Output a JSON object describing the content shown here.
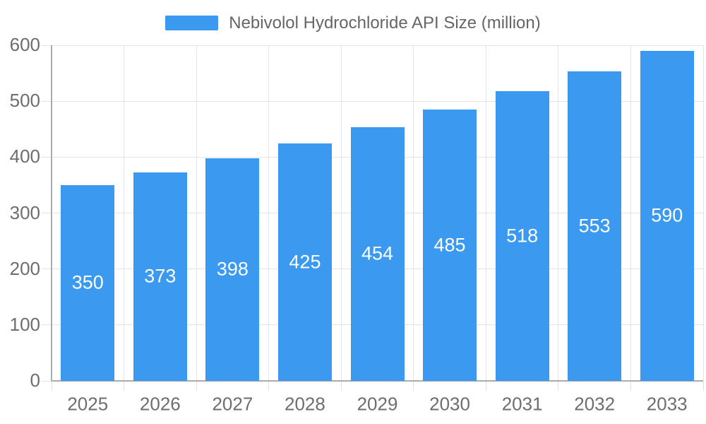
{
  "chart_data": {
    "type": "bar",
    "title": "",
    "legend": {
      "label": "Nebivolol Hydrochloride API Size (million)",
      "position": "top"
    },
    "categories": [
      "2025",
      "2026",
      "2027",
      "2028",
      "2029",
      "2030",
      "2031",
      "2032",
      "2033"
    ],
    "series": [
      {
        "name": "Nebivolol Hydrochloride API Size (million)",
        "values": [
          350,
          373,
          398,
          425,
          454,
          485,
          518,
          553,
          590
        ]
      }
    ],
    "xlabel": "",
    "ylabel": "",
    "ylim": [
      0,
      600
    ],
    "yticks": [
      0,
      100,
      200,
      300,
      400,
      500,
      600
    ],
    "grid": true,
    "value_labels": "inside-center",
    "colors": {
      "bar": "#3B99EF",
      "value_label": "#FFFFFF",
      "axis_label": "#6E6E6E",
      "legend_text": "#666666",
      "gridline": "#E4E4E4",
      "axis_line": "#ABABAB",
      "y_tick": "#E4E4E4",
      "x_tick": "#E0E0E0",
      "background": "#FFFFFF"
    }
  }
}
